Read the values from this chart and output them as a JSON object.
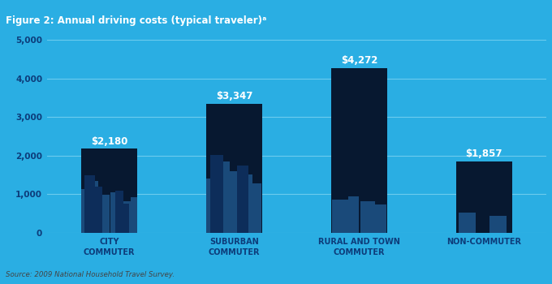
{
  "title": "Figure 2: Annual driving costs (typical traveler)ᵃ",
  "categories": [
    "CITY\nCOMMUTER",
    "SUBURBAN\nCOMMUTER",
    "RURAL AND TOWN\nCOMMUTER",
    "NON-COMMUTER"
  ],
  "values": [
    2180,
    3347,
    4272,
    1857
  ],
  "labels": [
    "$2,180",
    "$3,347",
    "$4,272",
    "$1,857"
  ],
  "bar_color": "#071830",
  "background_color": "#2aaee3",
  "title_bg_color": "#111111",
  "title_text_color": "#ffffff",
  "axis_text_color": "#1155aa",
  "label_text_color": "#ffffff",
  "xtick_color": "#0d3c7a",
  "source_text": "Source: 2009 National Household Travel Survey.",
  "ylim": [
    0,
    5000
  ],
  "yticks": [
    0,
    1000,
    2000,
    3000,
    4000,
    5000
  ],
  "bar_width": 0.45,
  "grid_color": "#6dcbee",
  "source_color": "#444444",
  "decor_color": "#1a4a7a",
  "decor_color2": "#0d2d5a"
}
